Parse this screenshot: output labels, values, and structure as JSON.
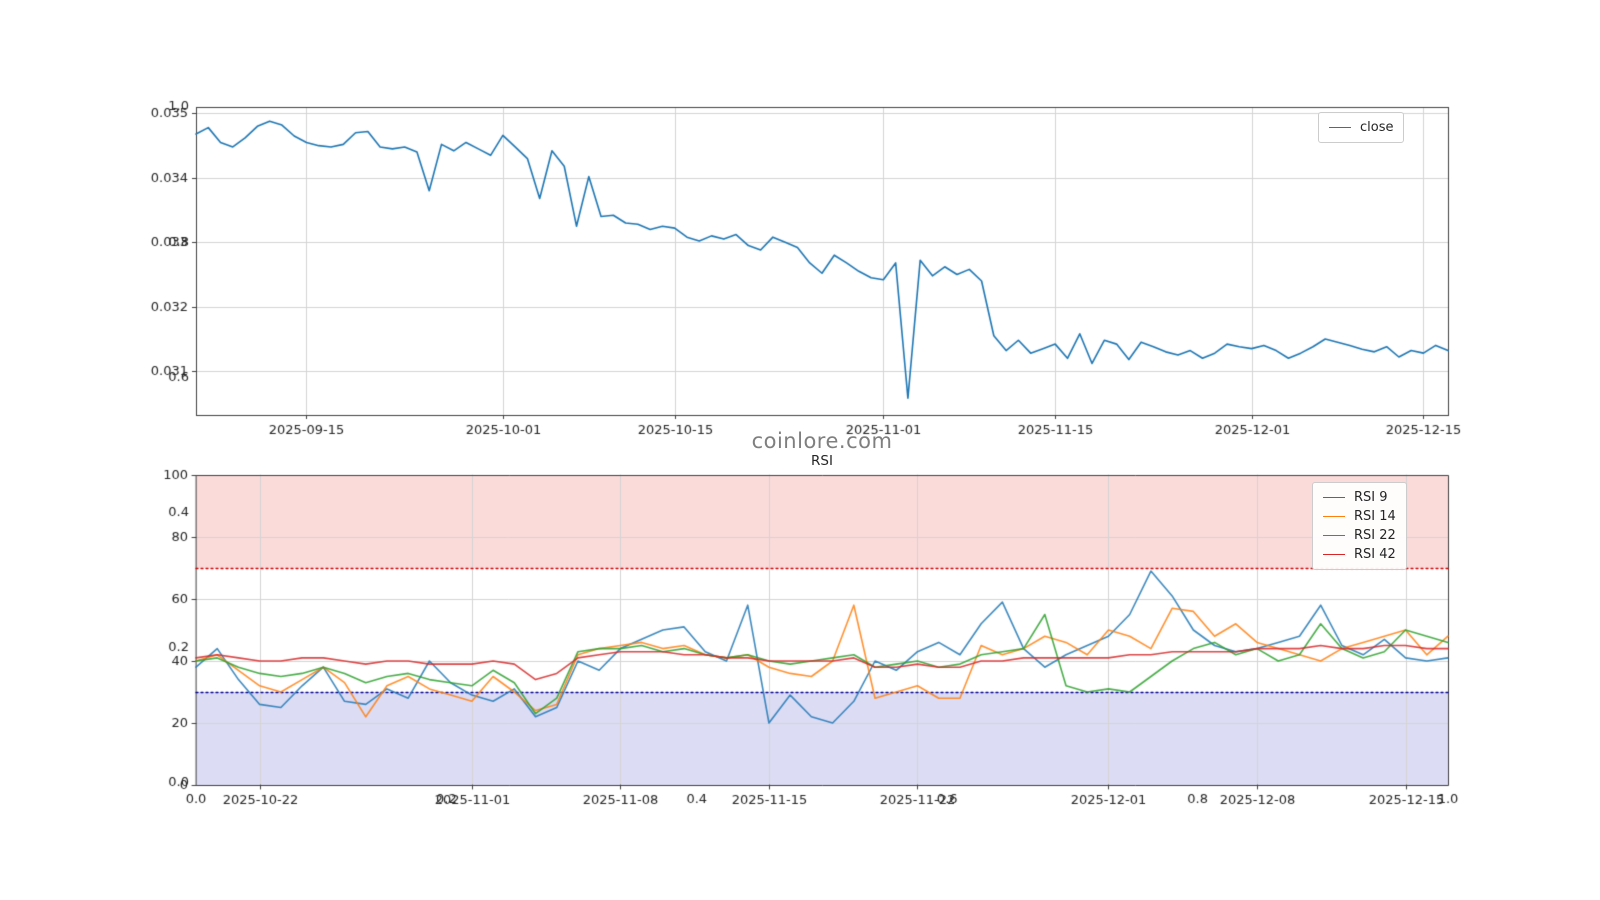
{
  "watermark": {
    "text": "coinlore.com"
  },
  "colors": {
    "background": "#ffffff",
    "grid": "#d4d4d4",
    "spine": "#3f3f3f",
    "tick_text": "#262626",
    "watermark": "#7f7f7f",
    "overbought_fill": "#fbdada",
    "oversold_fill": "#dcdcf5",
    "overbought_line": "#cc0000",
    "oversold_line": "#00008b"
  },
  "overlay_axis": {
    "yticks": [
      "1.0",
      "0.8",
      "0.6",
      "0.4",
      "0.2",
      "0.0"
    ],
    "xticks": [
      "0.0",
      "0.2",
      "0.4",
      "0.6",
      "0.8",
      "1.0"
    ]
  },
  "chart_data": [
    {
      "type": "line",
      "name": "price-close",
      "title": "",
      "legend": [
        {
          "label": "close",
          "color": "#1f77b4"
        }
      ],
      "ylim": [
        0.03032,
        0.0351
      ],
      "yticks": [
        0.035,
        0.034,
        0.033,
        0.032,
        0.031
      ],
      "ytick_labels": [
        "0.035",
        "0.034",
        "0.033",
        "0.032",
        "0.031"
      ],
      "xtick_labels": [
        "2025-09-15",
        "2025-10-01",
        "2025-10-15",
        "2025-11-01",
        "2025-11-15",
        "2025-12-01",
        "2025-12-15"
      ],
      "xtick_pos": [
        9,
        25,
        39,
        56,
        70,
        86,
        100
      ],
      "grid": true,
      "series": [
        {
          "name": "close",
          "color": "#1f77b4",
          "values": [
            0.03468,
            0.03478,
            0.03455,
            0.03448,
            0.03462,
            0.0348,
            0.03488,
            0.03482,
            0.03465,
            0.03455,
            0.0345,
            0.03448,
            0.03452,
            0.0347,
            0.03472,
            0.03448,
            0.03445,
            0.03448,
            0.0344,
            0.0338,
            0.03452,
            0.03442,
            0.03455,
            0.03445,
            0.03435,
            0.03466,
            0.03448,
            0.0343,
            0.03368,
            0.03442,
            0.03418,
            0.03325,
            0.03402,
            0.0334,
            0.03342,
            0.0333,
            0.03328,
            0.0332,
            0.03325,
            0.03322,
            0.03308,
            0.03302,
            0.0331,
            0.03305,
            0.03312,
            0.03295,
            0.03288,
            0.03308,
            0.033,
            0.03292,
            0.03268,
            0.03252,
            0.0328,
            0.03268,
            0.03255,
            0.03245,
            0.03242,
            0.03268,
            0.03058,
            0.03272,
            0.03248,
            0.03262,
            0.0325,
            0.03258,
            0.0324,
            0.03155,
            0.03132,
            0.03148,
            0.03128,
            0.03135,
            0.03142,
            0.0312,
            0.03158,
            0.03112,
            0.03148,
            0.03142,
            0.03118,
            0.03145,
            0.03138,
            0.0313,
            0.03125,
            0.03132,
            0.0312,
            0.03128,
            0.03142,
            0.03138,
            0.03135,
            0.0314,
            0.03132,
            0.0312,
            0.03128,
            0.03138,
            0.0315,
            0.03145,
            0.0314,
            0.03134,
            0.0313,
            0.03138,
            0.03122,
            0.03132,
            0.03128,
            0.0314,
            0.03132
          ]
        }
      ]
    },
    {
      "type": "line",
      "name": "rsi",
      "title": "RSI",
      "legend": [
        {
          "label": "RSI 9",
          "color": "#1f77b4"
        },
        {
          "label": "RSI 14",
          "color": "#ff7f0e"
        },
        {
          "label": "RSI 22",
          "color": "#2ca02c"
        },
        {
          "label": "RSI 42",
          "color": "#d62728"
        }
      ],
      "ylim": [
        0,
        100
      ],
      "yticks": [
        100,
        80,
        60,
        40,
        20,
        0
      ],
      "ytick_labels": [
        "100",
        "80",
        "60",
        "40",
        "20",
        "0"
      ],
      "xtick_labels": [
        "2025-10-22",
        "2025-11-01",
        "2025-11-08",
        "2025-11-15",
        "2025-11-22",
        "2025-12-01",
        "2025-12-08",
        "2025-12-15"
      ],
      "xtick_pos": [
        3,
        13,
        20,
        27,
        34,
        43,
        50,
        57
      ],
      "grid": true,
      "bands": [
        {
          "from": 70,
          "to": 100,
          "fill": "#fbdada"
        },
        {
          "from": 0,
          "to": 30,
          "fill": "#dcdcf5"
        }
      ],
      "hlines": [
        {
          "y": 70,
          "color": "#cc0000"
        },
        {
          "y": 30,
          "color": "#00008b"
        }
      ],
      "series": [
        {
          "name": "RSI 9",
          "color": "#1f77b4",
          "values": [
            38,
            44,
            34,
            26,
            25,
            32,
            38,
            27,
            26,
            31,
            28,
            40,
            33,
            29,
            27,
            31,
            22,
            25,
            40,
            37,
            44,
            47,
            50,
            51,
            43,
            40,
            58,
            20,
            29,
            22,
            20,
            27,
            40,
            37,
            43,
            46,
            42,
            52,
            59,
            44,
            38,
            42,
            45,
            48,
            55,
            69,
            61,
            50,
            45,
            43,
            44,
            46,
            48,
            58,
            45,
            42,
            47,
            41,
            40,
            41
          ]
        },
        {
          "name": "RSI 14",
          "color": "#ff7f0e",
          "values": [
            40,
            42,
            37,
            32,
            30,
            34,
            38,
            33,
            22,
            32,
            35,
            31,
            29,
            27,
            35,
            30,
            24,
            26,
            42,
            44,
            45,
            46,
            44,
            45,
            42,
            41,
            42,
            38,
            36,
            35,
            40,
            58,
            28,
            30,
            32,
            28,
            28,
            45,
            42,
            44,
            48,
            46,
            42,
            50,
            48,
            44,
            57,
            56,
            48,
            52,
            46,
            44,
            42,
            40,
            44,
            46,
            48,
            50,
            42,
            48
          ]
        },
        {
          "name": "RSI 22",
          "color": "#2ca02c",
          "values": [
            40,
            41,
            38,
            36,
            35,
            36,
            38,
            36,
            33,
            35,
            36,
            34,
            33,
            32,
            37,
            33,
            23,
            28,
            43,
            44,
            44,
            45,
            43,
            44,
            42,
            41,
            42,
            40,
            39,
            40,
            41,
            42,
            38,
            39,
            40,
            38,
            39,
            42,
            43,
            44,
            55,
            32,
            30,
            31,
            30,
            35,
            40,
            44,
            46,
            42,
            44,
            40,
            42,
            52,
            44,
            41,
            43,
            50,
            48,
            46
          ]
        },
        {
          "name": "RSI 42",
          "color": "#d62728",
          "values": [
            41,
            42,
            41,
            40,
            40,
            41,
            41,
            40,
            39,
            40,
            40,
            39,
            39,
            39,
            40,
            39,
            34,
            36,
            41,
            42,
            43,
            43,
            43,
            42,
            42,
            41,
            41,
            40,
            40,
            40,
            40,
            41,
            38,
            38,
            39,
            38,
            38,
            40,
            40,
            41,
            41,
            41,
            41,
            41,
            42,
            42,
            43,
            43,
            43,
            43,
            44,
            44,
            44,
            45,
            44,
            44,
            45,
            45,
            44,
            44
          ]
        }
      ]
    }
  ]
}
